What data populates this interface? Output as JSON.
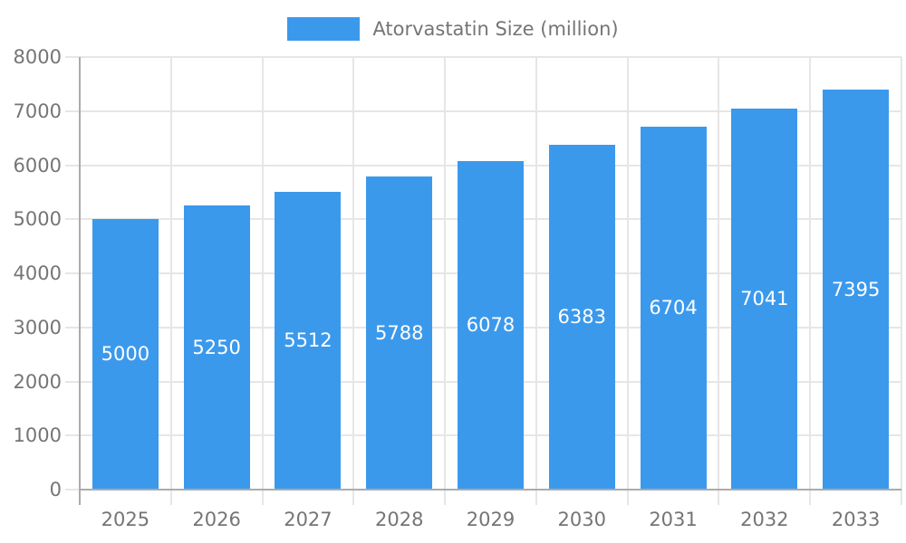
{
  "chart_data": {
    "type": "bar",
    "title": "",
    "series_name": "Atorvastatin Size (million)",
    "categories": [
      "2025",
      "2026",
      "2027",
      "2028",
      "2029",
      "2030",
      "2031",
      "2032",
      "2033"
    ],
    "values": [
      5000,
      5250,
      5512,
      5788,
      6078,
      6383,
      6704,
      7041,
      7395
    ],
    "xlabel": "",
    "ylabel": "",
    "ylim": [
      0,
      8000
    ],
    "yticks": [
      0,
      1000,
      2000,
      3000,
      4000,
      5000,
      6000,
      7000,
      8000
    ],
    "grid": true,
    "bar_value_labels_shown": true,
    "legend_position": "top-center",
    "colors": {
      "bar": "#3B99EC",
      "bar_label": "#FFFFFF",
      "axis_text": "#757575",
      "grid_line": "#E6E6E6",
      "axis_line": "#ABABAB",
      "background": "#FFFFFF"
    }
  }
}
